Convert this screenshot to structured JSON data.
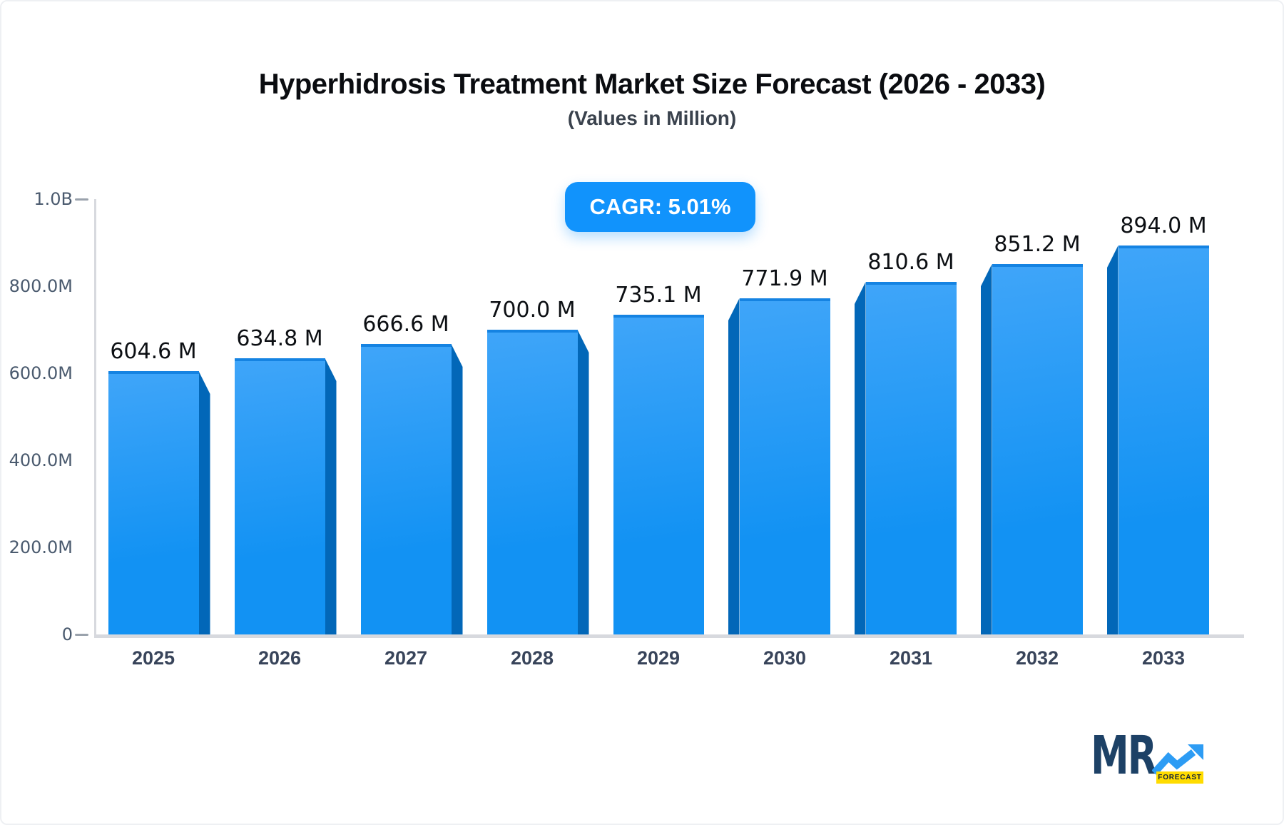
{
  "header": {
    "title": "Hyperhidrosis Treatment Market Size Forecast (2026 - 2033)",
    "subtitle": "(Values in Million)",
    "cagr_badge": "CAGR: 5.01%"
  },
  "chart_data": {
    "type": "bar",
    "title": "Hyperhidrosis Treatment Market Size Forecast (2026 - 2033)",
    "subtitle": "(Values in Million)",
    "cagr_percent": 5.01,
    "categories": [
      "2025",
      "2026",
      "2027",
      "2028",
      "2029",
      "2030",
      "2031",
      "2032",
      "2033"
    ],
    "values": [
      604.6,
      634.8,
      666.6,
      700.0,
      735.1,
      771.9,
      810.6,
      851.2,
      894.0
    ],
    "value_labels": [
      "604.6 M",
      "634.8 M",
      "666.6 M",
      "700.0 M",
      "735.1 M",
      "771.9 M",
      "810.6 M",
      "851.2 M",
      "894.0 M"
    ],
    "xlabel": "",
    "ylabel": "",
    "ylim": [
      0,
      1000
    ],
    "ytick_labels": [
      "0",
      "200.0M",
      "400.0M",
      "600.0M",
      "800.0M",
      "1.0B"
    ],
    "grid": false,
    "legend": false
  },
  "colors": {
    "bar_face": "#1292f3",
    "bar_face_light": "#3fa5f9",
    "bar_side": "#0267b8",
    "bar_top_edge": "#1583e2",
    "badge_bg": "#1193fc",
    "badge_text": "#ffffff",
    "axis_line": "#d7d9de",
    "title_text": "#0a0c10",
    "subtitle_text": "#3a424d",
    "tick_text": "#4a5a6e",
    "year_text": "#38445a",
    "value_text": "#0c0f13",
    "logo_navy": "#1d4166",
    "logo_arrow_blue": "#2d9cf4",
    "logo_yellow": "#ffdc00"
  },
  "logo": {
    "brand": "MR",
    "sub": "FORECAST"
  }
}
